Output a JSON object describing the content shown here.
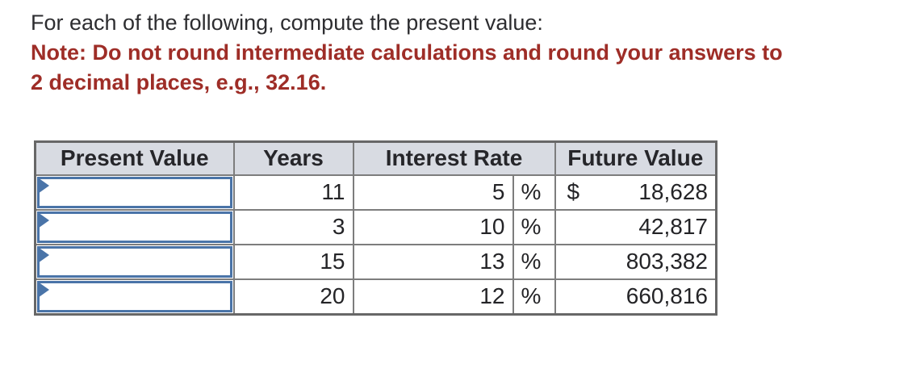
{
  "colors": {
    "note-red": "#9e2d27",
    "text-dark": "#2d2d30",
    "table-text": "#242427",
    "header-bg": "#d8dbe2",
    "border-outer": "#676767",
    "border-inner": "#7d7d7d",
    "input-blue": "#4a74a8"
  },
  "prompt": {
    "instruction": "For each of the following, compute the present value:",
    "note_line1": "Note: Do not round intermediate calculations and round your answers to",
    "note_line2": "2 decimal places, e.g., 32.16."
  },
  "table": {
    "headers": [
      "Present Value",
      "Years",
      "Interest Rate",
      "Future Value"
    ],
    "rows": [
      {
        "present_value": "",
        "years": "11",
        "interest_rate": "5",
        "percent": "%",
        "currency": "$",
        "future_value": "18,628"
      },
      {
        "present_value": "",
        "years": "3",
        "interest_rate": "10",
        "percent": "%",
        "currency": "",
        "future_value": "42,817"
      },
      {
        "present_value": "",
        "years": "15",
        "interest_rate": "13",
        "percent": "%",
        "currency": "",
        "future_value": "803,382"
      },
      {
        "present_value": "",
        "years": "20",
        "interest_rate": "12",
        "percent": "%",
        "currency": "",
        "future_value": "660,816"
      }
    ]
  }
}
